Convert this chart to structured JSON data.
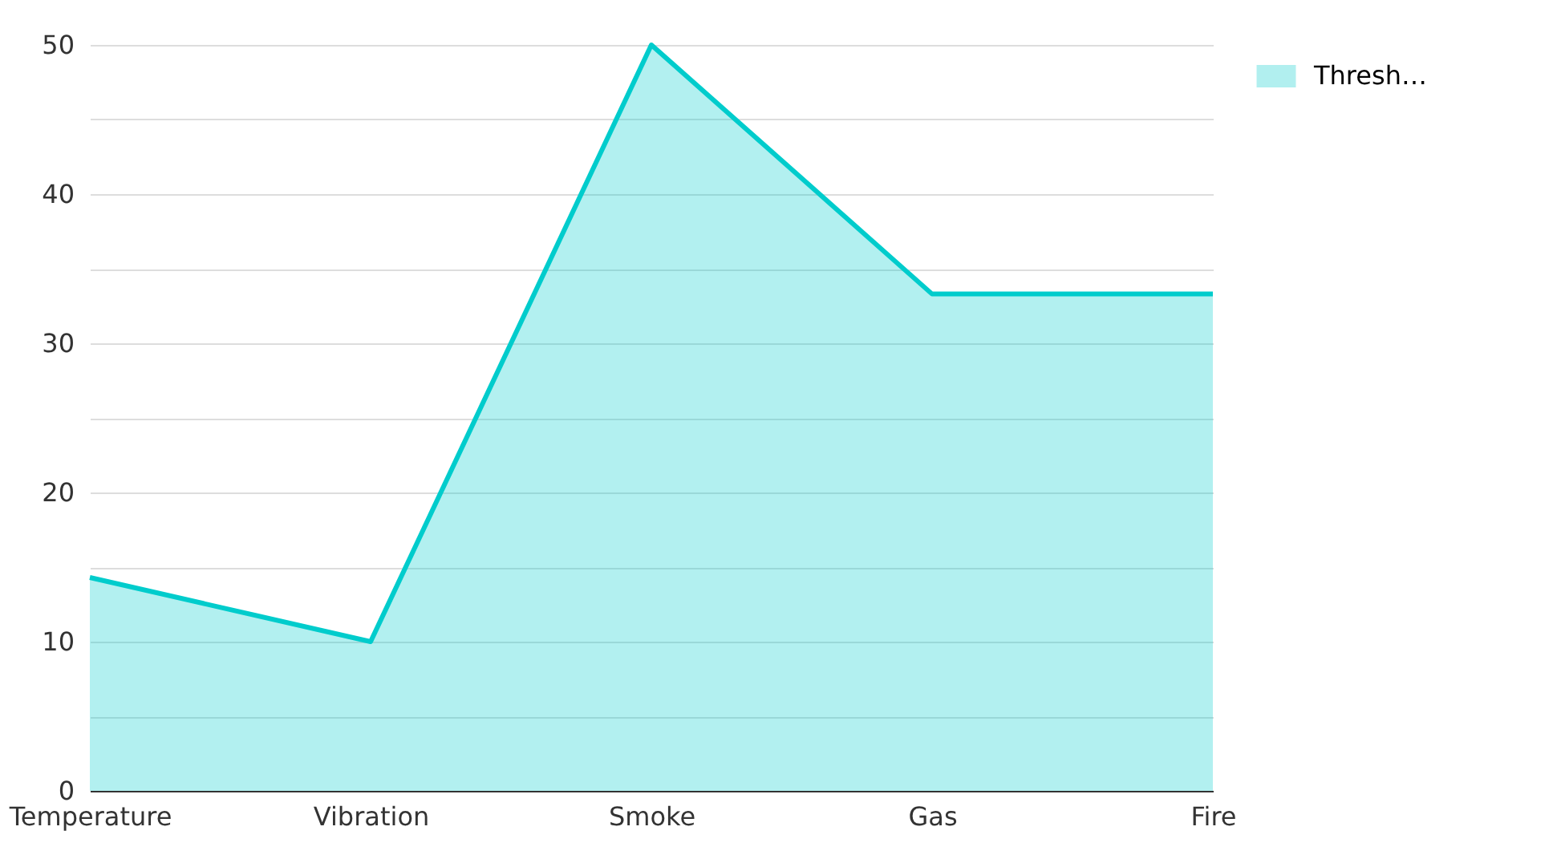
{
  "chart_data": {
    "type": "area",
    "categories": [
      "Temperature",
      "Vibration",
      "Smoke",
      "Gas",
      "Fire"
    ],
    "series": [
      {
        "name": "Thresh…",
        "color": "#00cccc",
        "values": [
          14.3,
          10,
          50,
          33.3,
          33.3
        ]
      }
    ],
    "ylim": [
      0,
      50
    ],
    "yticks": [
      0,
      {
        "value": 5,
        "label": null
      },
      10,
      {
        "value": 15,
        "label": null
      },
      20,
      {
        "value": 25,
        "label": null
      },
      30,
      {
        "value": 35,
        "label": null
      },
      40,
      {
        "value": 45,
        "label": null
      },
      50
    ],
    "grid": "y",
    "legend": "top right"
  }
}
